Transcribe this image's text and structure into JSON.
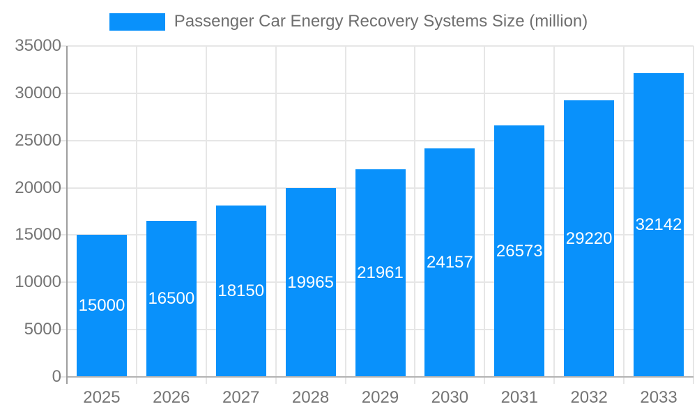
{
  "legend": {
    "label": "Passenger Car Energy Recovery Systems Size (million)"
  },
  "colors": {
    "bar": "#0991fb",
    "grid": "#e6e6e6",
    "axis": "#9e9e9e",
    "baseline": "#b3b3b3",
    "tick_text": "#757575",
    "legend_text": "#6f6f6f",
    "value_label": "#ffffff",
    "background": "#ffffff"
  },
  "chart_data": {
    "type": "bar",
    "title": "Passenger Car Energy Recovery Systems Size (million)",
    "categories": [
      "2025",
      "2026",
      "2027",
      "2028",
      "2029",
      "2030",
      "2031",
      "2032",
      "2033"
    ],
    "values": [
      15000,
      16500,
      18150,
      19965,
      21961,
      24157,
      26573,
      29220,
      32142
    ],
    "xlabel": "",
    "ylabel": "",
    "ylim": [
      0,
      35000
    ],
    "yticks": [
      0,
      5000,
      10000,
      15000,
      20000,
      25000,
      30000,
      35000
    ],
    "grid": true,
    "legend_position": "top-center",
    "bar_labels": "inside-center-white"
  }
}
